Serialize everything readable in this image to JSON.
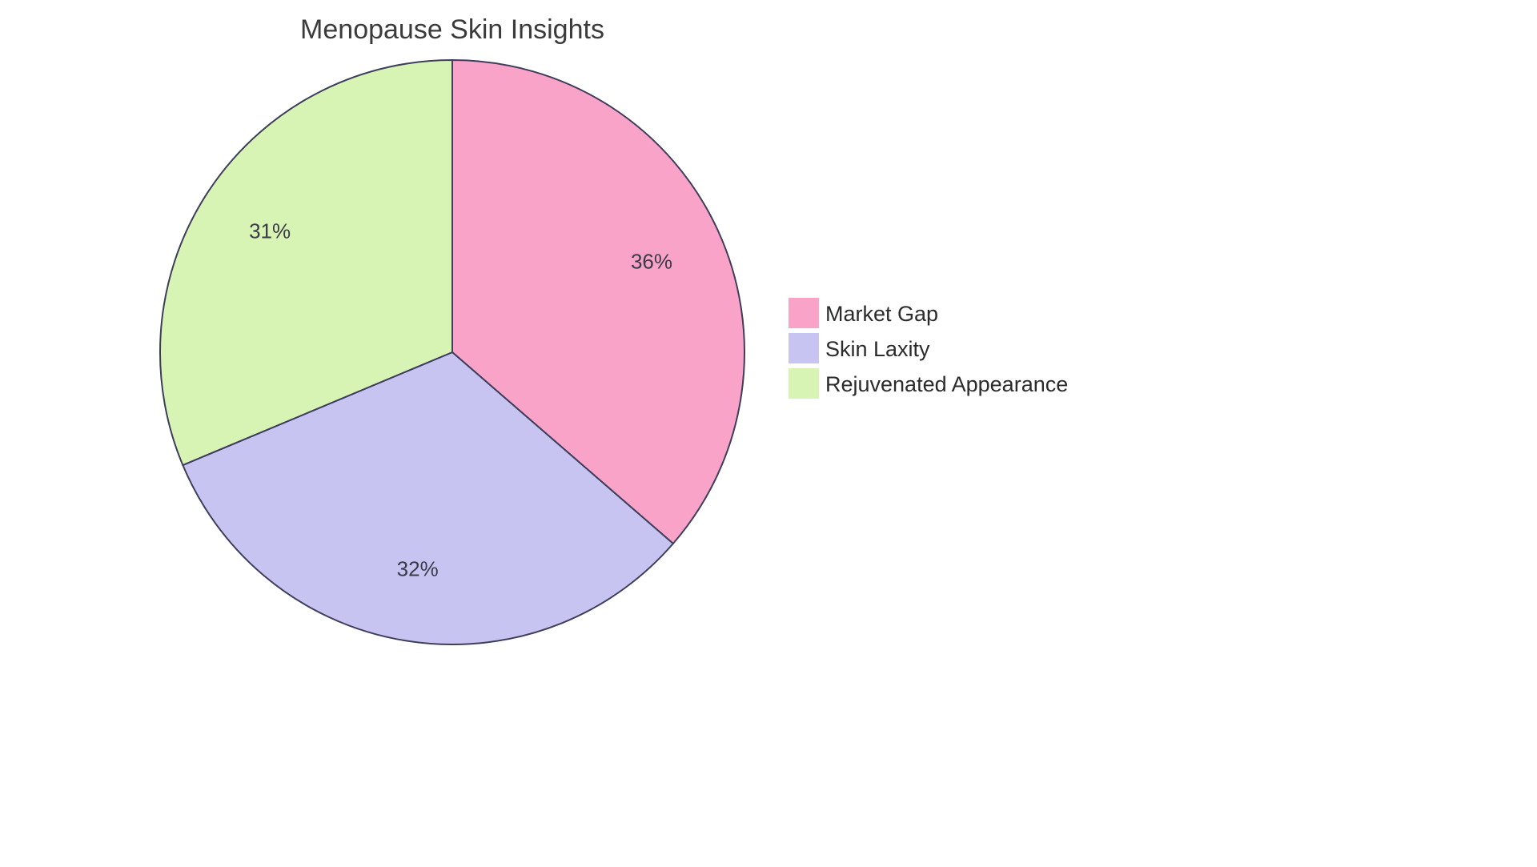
{
  "chart_data": {
    "type": "pie",
    "title": "Menopause Skin Insights",
    "legend_position": "right",
    "slices": [
      {
        "name": "Market Gap",
        "value": 36,
        "label": "36%",
        "color": "#F9A3C8"
      },
      {
        "name": "Skin Laxity",
        "value": 32,
        "label": "32%",
        "color": "#C7C4F2"
      },
      {
        "name": "Rejuvenated Appearance",
        "value": 31,
        "label": "31%",
        "color": "#D8F4B4"
      }
    ],
    "stroke_color": "#3d3d5c",
    "background_color": "#ffffff"
  }
}
